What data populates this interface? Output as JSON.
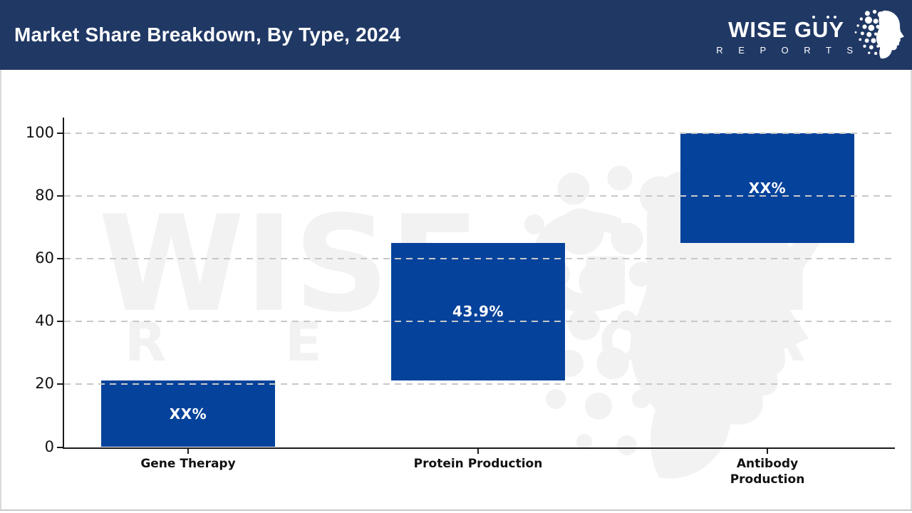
{
  "header": {
    "title": "Market Share Breakdown, By Type, 2024",
    "logo": {
      "line1": "WISE GUY",
      "line2": "R E P O R T S"
    }
  },
  "watermark": {
    "line1": "WISE GUY",
    "line2": "R E P O R T S"
  },
  "chart_data": {
    "type": "bar",
    "variant": "waterfall",
    "title": "Market Share Breakdown, By Type, 2024",
    "categories": [
      "Gene Therapy",
      "Protein Production",
      "Antibody\nProduction"
    ],
    "bars": [
      {
        "category": "Gene Therapy",
        "start": 0,
        "end": 21.2,
        "value_label": "XX%"
      },
      {
        "category": "Protein Production",
        "start": 21.2,
        "end": 65.1,
        "value_label": "43.9%"
      },
      {
        "category": "Antibody\nProduction",
        "start": 65.1,
        "end": 100,
        "value_label": "XX%"
      }
    ],
    "yticks": [
      0,
      20,
      40,
      60,
      80,
      100
    ],
    "ylim": [
      0,
      105
    ],
    "xlabel": "",
    "ylabel": "",
    "legend": null,
    "grid": {
      "horizontal": true,
      "style": "dashed"
    }
  },
  "colors": {
    "header_bg": "#203864",
    "bar": "#05429b",
    "watermark": "#f2f2f2",
    "grid": "#c8c8c8",
    "axis": "#1a1a1a"
  }
}
